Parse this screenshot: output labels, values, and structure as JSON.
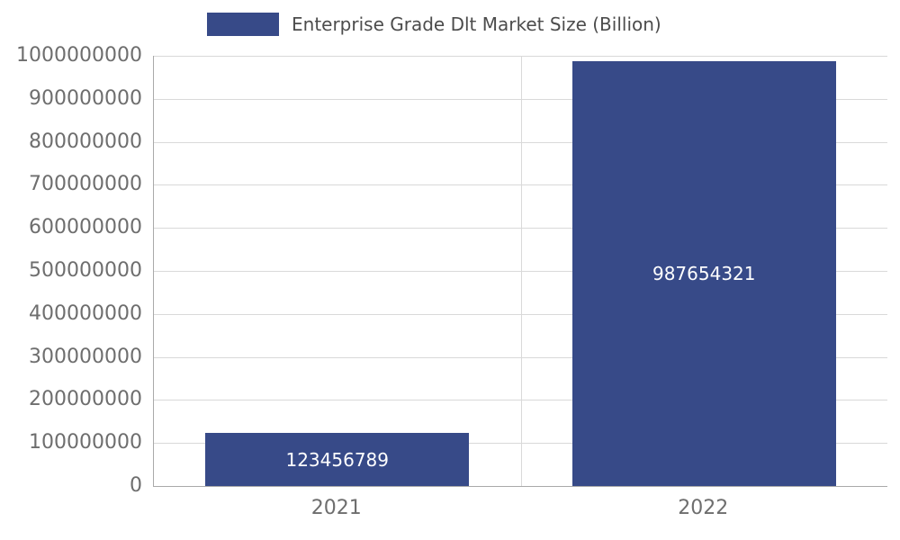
{
  "chart_data": {
    "type": "bar",
    "title": "Enterprise Grade Dlt Market Size (Billion)",
    "categories": [
      "2021",
      "2022"
    ],
    "values": [
      123456789,
      987654321
    ],
    "data_labels": [
      "123456789",
      "987654321"
    ],
    "ylim": [
      0,
      1000000000
    ],
    "ytick_step": 100000000,
    "ytick_labels": [
      "0",
      "100000000",
      "200000000",
      "300000000",
      "400000000",
      "500000000",
      "600000000",
      "700000000",
      "800000000",
      "900000000",
      "1000000000"
    ],
    "grid": true,
    "legend_position": "top",
    "legend": [
      {
        "label": "Enterprise Grade Dlt Market Size (Billion)",
        "color": "#374a88"
      }
    ],
    "colors": {
      "bar": "#374a88",
      "data_label": "#ffffff",
      "tick_label": "#6e6e6e",
      "title": "#4c4c4c",
      "grid": "#d9d9d9",
      "axis": "#a9a9a9",
      "background": "#ffffff"
    }
  }
}
